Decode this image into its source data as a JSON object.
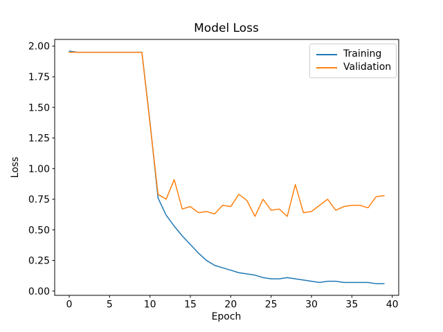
{
  "window": {
    "background": "#ffffff",
    "spine_color": "#000000",
    "legend_border_color": "#cccccc"
  },
  "chart_data": {
    "type": "line",
    "title": "Model Loss",
    "xlabel": "Epoch",
    "ylabel": "Loss",
    "grid": false,
    "legend_position": "upper-right",
    "xlim": [
      -1.8,
      40.8
    ],
    "ylim": [
      -0.035,
      2.055
    ],
    "x_ticks": [
      "0",
      "5",
      "10",
      "15",
      "20",
      "25",
      "30",
      "35",
      "40"
    ],
    "y_ticks": [
      "0.00",
      "0.25",
      "0.50",
      "0.75",
      "1.00",
      "1.25",
      "1.50",
      "1.75",
      "2.00"
    ],
    "x": [
      0,
      1,
      2,
      3,
      4,
      5,
      6,
      7,
      8,
      9,
      10,
      11,
      12,
      13,
      14,
      15,
      16,
      17,
      18,
      19,
      20,
      21,
      22,
      23,
      24,
      25,
      26,
      27,
      28,
      29,
      30,
      31,
      32,
      33,
      34,
      35,
      36,
      37,
      38,
      39
    ],
    "series": [
      {
        "name": "Training",
        "color": "#1f77b4",
        "values": [
          1.96,
          1.95,
          1.95,
          1.95,
          1.95,
          1.95,
          1.95,
          1.95,
          1.95,
          1.95,
          1.38,
          0.76,
          0.62,
          0.53,
          0.45,
          0.38,
          0.31,
          0.25,
          0.21,
          0.19,
          0.17,
          0.15,
          0.14,
          0.13,
          0.11,
          0.1,
          0.1,
          0.11,
          0.1,
          0.09,
          0.08,
          0.07,
          0.08,
          0.08,
          0.07,
          0.07,
          0.07,
          0.07,
          0.06,
          0.06
        ]
      },
      {
        "name": "Validation",
        "color": "#ff7f0e",
        "values": [
          1.95,
          1.95,
          1.95,
          1.95,
          1.95,
          1.95,
          1.95,
          1.95,
          1.95,
          1.95,
          1.37,
          0.79,
          0.75,
          0.91,
          0.67,
          0.69,
          0.64,
          0.65,
          0.63,
          0.7,
          0.69,
          0.79,
          0.74,
          0.61,
          0.75,
          0.66,
          0.67,
          0.61,
          0.87,
          0.64,
          0.65,
          0.7,
          0.75,
          0.66,
          0.69,
          0.7,
          0.7,
          0.68,
          0.77,
          0.78
        ]
      }
    ]
  }
}
